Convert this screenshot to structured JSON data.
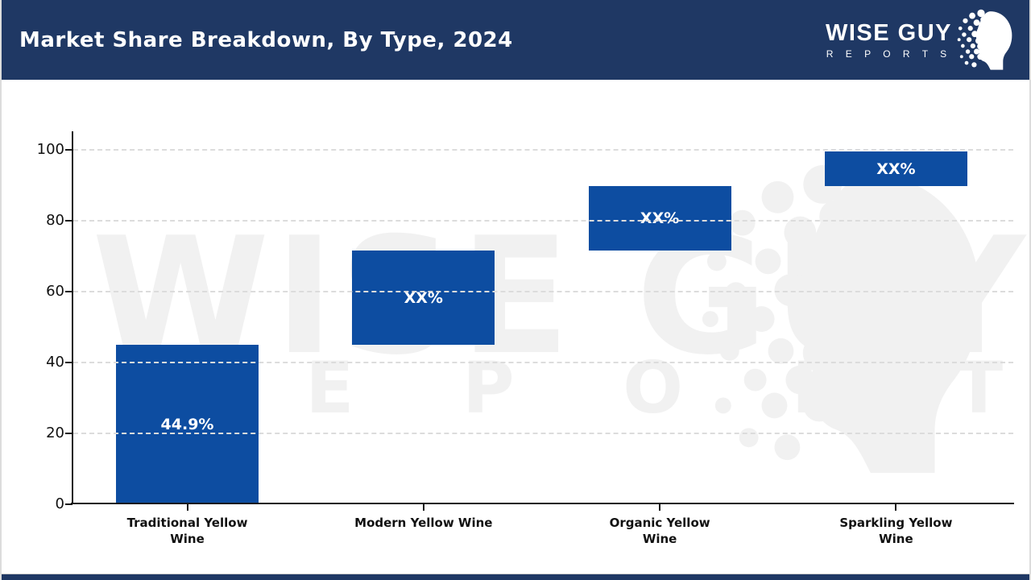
{
  "header": {
    "title": "Market Share Breakdown, By Type, 2024",
    "logo": {
      "name": "WISE GUY",
      "tagline": "R E P O R T S"
    }
  },
  "watermark": {
    "line1": "WISE GUY",
    "line2": "R E P O R T S"
  },
  "chart_data": {
    "type": "bar",
    "subtype": "waterfall",
    "title": "Market Share Breakdown, By Type, 2024",
    "categories": [
      "Traditional Yellow\nWine",
      "Modern Yellow Wine",
      "Organic Yellow\nWine",
      "Sparkling Yellow\nWine"
    ],
    "segments": [
      {
        "category": "Traditional Yellow Wine",
        "start": 0,
        "end": 44.9,
        "label": "44.9%"
      },
      {
        "category": "Modern Yellow Wine",
        "start": 44.9,
        "end": 71.6,
        "label": "XX%"
      },
      {
        "category": "Organic Yellow Wine",
        "start": 71.6,
        "end": 89.8,
        "label": "XX%"
      },
      {
        "category": "Sparkling Yellow Wine",
        "start": 89.8,
        "end": 99.5,
        "label": "XX%"
      }
    ],
    "yticks": [
      0,
      20,
      40,
      60,
      80,
      100
    ],
    "ylim": [
      0,
      105
    ],
    "xlabel": "",
    "ylabel": "",
    "grid": "horizontal-dashed",
    "legend": "none",
    "bar_color": "#0d4da1",
    "bar_label_color": "#ffffff"
  },
  "colors": {
    "header_bg": "#1f3864",
    "footer_bg": "#1f3864",
    "bar": "#0d4da1",
    "axis": "#1a1a1a",
    "gridline": "#dcdcdc",
    "watermark": "#f1f1f1"
  }
}
